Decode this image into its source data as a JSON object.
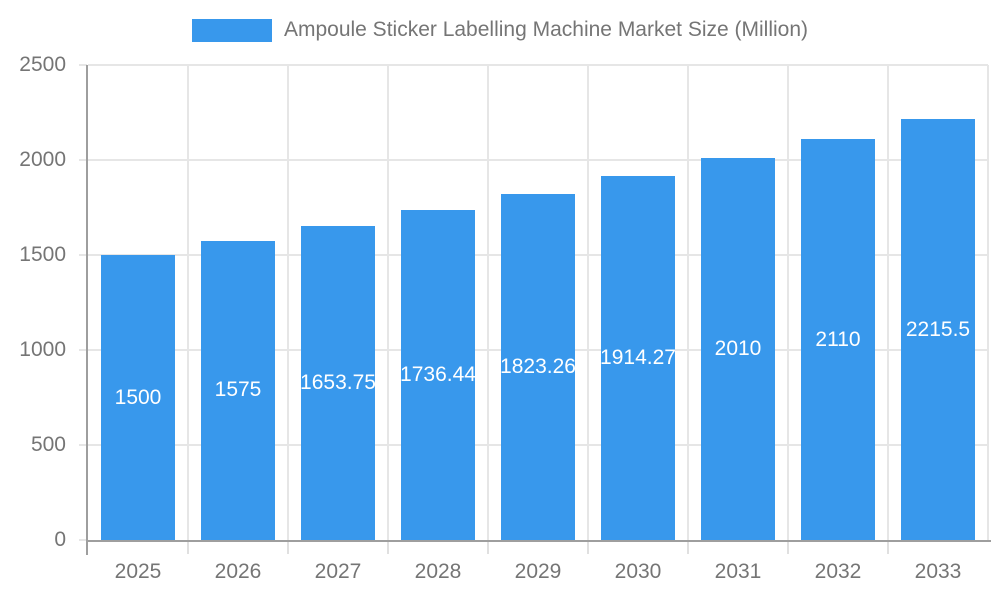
{
  "legend": {
    "label": "Ampoule Sticker Labelling Machine Market Size (Million)",
    "swatch_color": "#3898EC"
  },
  "chart_data": {
    "type": "bar",
    "title": "Ampoule Sticker Labelling Machine Market Size (Million)",
    "series_name": "Ampoule Sticker Labelling Machine Market Size (Million)",
    "categories": [
      "2025",
      "2026",
      "2027",
      "2028",
      "2029",
      "2030",
      "2031",
      "2032",
      "2033"
    ],
    "values": [
      1500,
      1575,
      1653.75,
      1736.44,
      1823.26,
      1914.27,
      2010,
      2110,
      2215.5
    ],
    "value_labels": [
      "1500",
      "1575",
      "1653.75",
      "1736.44",
      "1823.26",
      "1914.27",
      "2010",
      "2110",
      "2215.5"
    ],
    "xlabel": "",
    "ylabel": "",
    "ylim": [
      0,
      2500
    ],
    "yticks": [
      0,
      500,
      1000,
      1500,
      2000,
      2500
    ],
    "grid": true,
    "legend_position": "top",
    "bar_color": "#3898EC",
    "value_label_color": "#ffffff",
    "axis_text_color": "#757575",
    "axis_line_color": "#9e9e9e",
    "gridline_color": "#e6e6e6"
  }
}
